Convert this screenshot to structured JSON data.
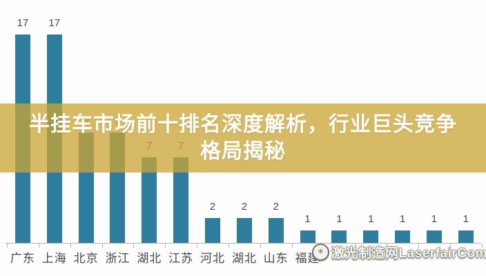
{
  "chart_data": {
    "type": "bar",
    "categories": [
      "广东",
      "上海",
      "北京",
      "浙江",
      "湖北",
      "江苏",
      "河北",
      "湖北",
      "山东",
      "福建",
      "",
      "",
      "",
      "",
      ""
    ],
    "values": [
      17,
      17,
      9,
      9,
      7,
      7,
      2,
      2,
      2,
      1,
      1,
      1,
      1,
      1,
      1
    ],
    "title": "",
    "xlabel": "",
    "ylabel": "",
    "ylim": [
      0,
      17
    ],
    "grid": "off",
    "legend": "none",
    "bar_color": "#2e7d9c",
    "value_label_color": "#4a4a4a",
    "axis_label_color": "#474747",
    "axis_line_color": "#b3b3b3"
  },
  "banner": {
    "line1": "半挂车市场前十排名深度解析，行业巨头竞争",
    "line2": "格局揭秘",
    "overlay_color": "#cba435",
    "text_color": "#ffffff"
  },
  "watermark": {
    "logo_glyph": "✳",
    "text": "激光制造网LaserfairCom"
  }
}
